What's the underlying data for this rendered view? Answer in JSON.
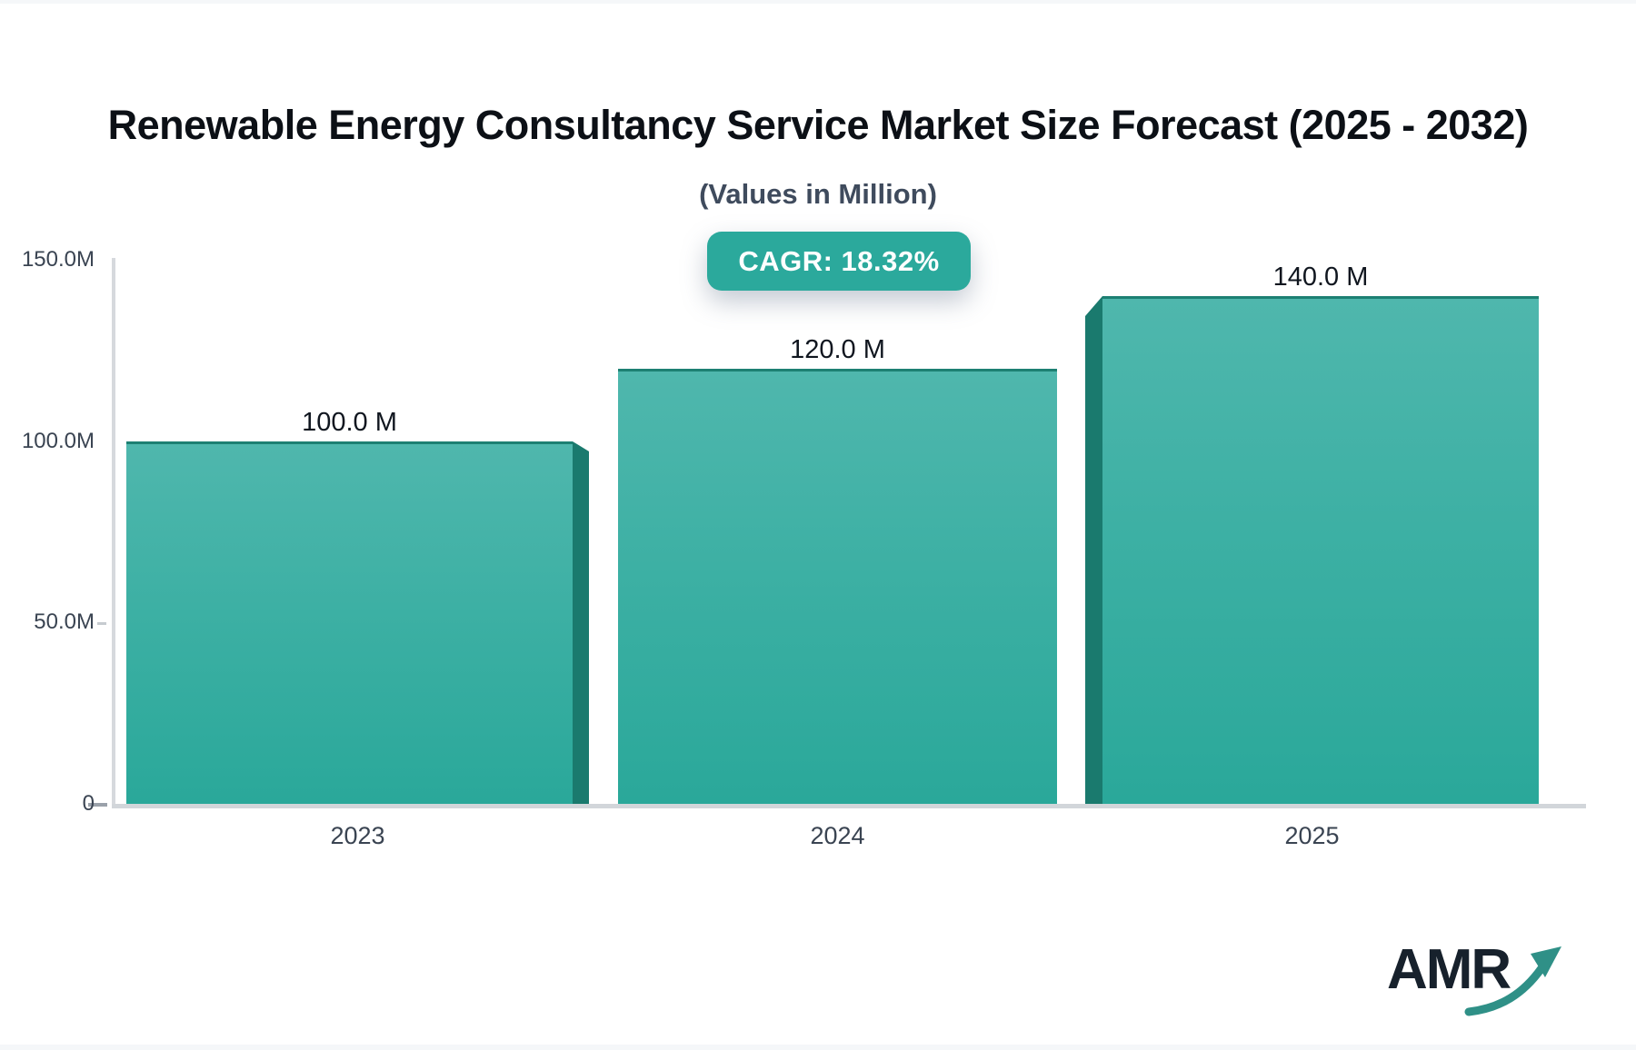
{
  "header": {
    "title": "Renewable Energy Consultancy Service Market Size Forecast (2025 - 2032)",
    "subtitle": "(Values in Million)"
  },
  "badge": {
    "label": "CAGR: 18.32%"
  },
  "logo": {
    "text": "AMR"
  },
  "colors": {
    "bar_top": "#4fb7ad",
    "bar_bottom": "#2aa89a",
    "bar_side": "#1a7a6e",
    "badge_background": "#2ba99c",
    "axis_line": "#d6d9dd",
    "label_text": "#3a4452"
  },
  "chart_data": {
    "type": "bar",
    "title": "Renewable Energy Consultancy Service Market Size Forecast (2025 - 2032)",
    "subtitle": "(Values in Million)",
    "unit": "Million",
    "cagr_percent": 18.32,
    "categories": [
      "2023",
      "2024",
      "2025"
    ],
    "values": [
      100.0,
      120.0,
      140.0
    ],
    "value_labels": [
      "100.0 M",
      "120.0 M",
      "140.0 M"
    ],
    "ylim": [
      0,
      150
    ],
    "yticks": [
      {
        "value": 150,
        "label": "150.0M"
      },
      {
        "value": 100,
        "label": "100.0M"
      },
      {
        "value": 50,
        "label": "50.0M"
      },
      {
        "value": 0,
        "label": "0"
      }
    ],
    "grid": false,
    "legend": false
  }
}
